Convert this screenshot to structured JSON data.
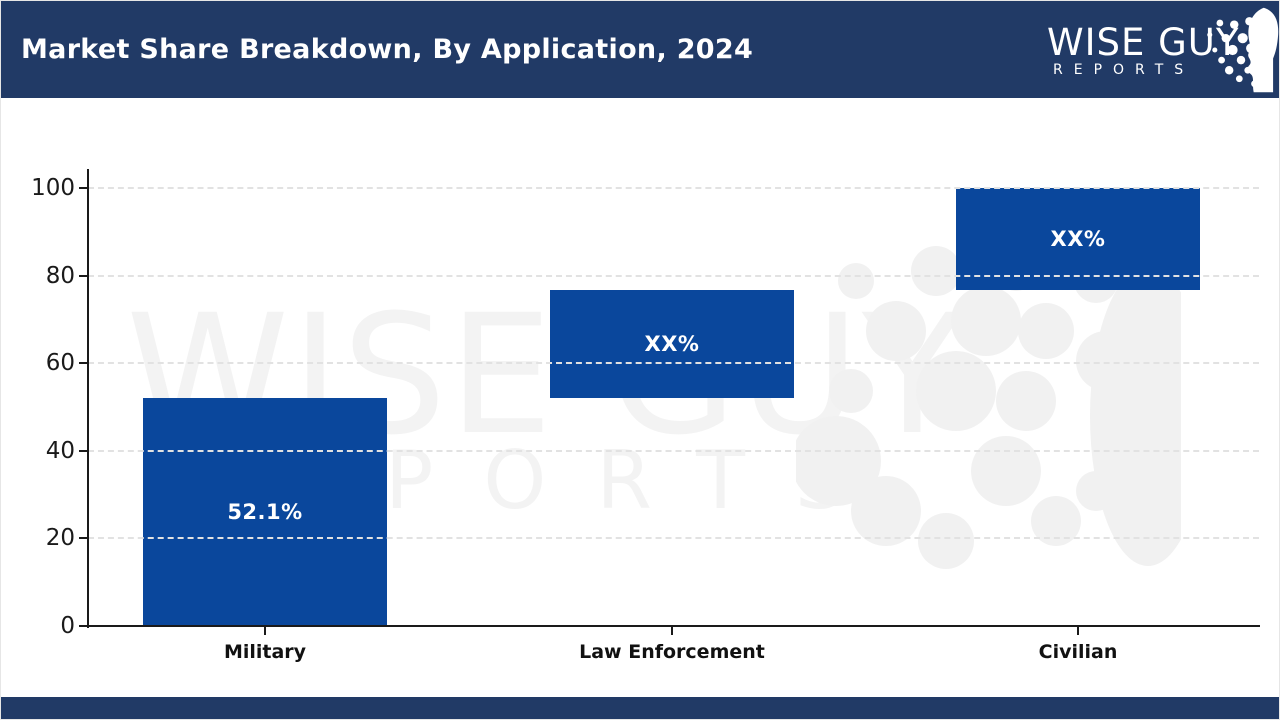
{
  "header": {
    "title": "Market Share Breakdown, By Application, 2024",
    "logo": {
      "brand": "WISE GUY",
      "sub": "REPORTS"
    }
  },
  "watermark": {
    "brand": "WISE GUY",
    "sub": "REPORTS"
  },
  "chart_data": {
    "type": "bar",
    "subtype": "stacked-percentage-waterfall",
    "title": "Market Share Breakdown, By Application, 2024",
    "categories": [
      "Military",
      "Law Enforcement",
      "Civilian"
    ],
    "segments": [
      {
        "category": "Military",
        "start": 0,
        "end": 52.1,
        "label": "52.1%"
      },
      {
        "category": "Law Enforcement",
        "start": 52.1,
        "end": 76.8,
        "label": "XX%"
      },
      {
        "category": "Civilian",
        "start": 76.8,
        "end": 100,
        "label": "XX%"
      }
    ],
    "yticks": [
      0,
      20,
      40,
      60,
      80,
      100
    ],
    "ylim": [
      0,
      104
    ],
    "xlabel": "",
    "ylabel": "",
    "grid": true,
    "legend": false,
    "bar_color": "#0a479c"
  },
  "colors": {
    "header_bg": "#213a66",
    "footer_bg": "#213a66",
    "bar": "#0a479c",
    "bar_label": "#ffffff",
    "gridline": "#e2e2e2",
    "axis": "#1a1a1a",
    "tick_text": "#111111",
    "watermark": "#f3f3f3"
  }
}
